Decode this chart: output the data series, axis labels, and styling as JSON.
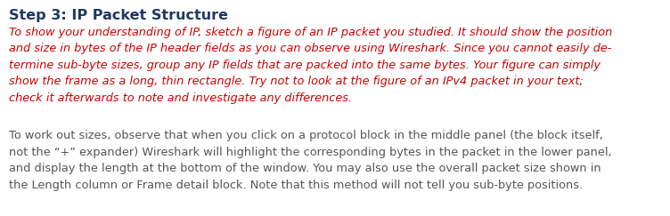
{
  "title": "Step 3: IP Packet Structure",
  "title_color": "#1f3864",
  "title_fontsize": 11.5,
  "red_lines": [
    "To show your understanding of IP, sketch a figure of an IP packet you studied. It should show the position",
    "and size in bytes of the IP header fields as you can observe using Wireshark. Since you cannot easily de-",
    "termine sub-byte sizes, group any IP fields that are packed into the same bytes. Your figure can simply",
    "show the frame as a long, thin rectangle. Try not to look at the figure of an IPv4 packet in your text;",
    "check it afterwards to note and investigate any differences."
  ],
  "red_color": "#cc0000",
  "red_fontsize": 9.3,
  "black_lines": [
    "To work out sizes, observe that when you click on a protocol block in the middle panel (the block itself,",
    "not the “+” expander) Wireshark will highlight the corresponding bytes in the packet in the lower panel,",
    "and display the length at the bottom of the window. You may also use the overall packet size shown in",
    "the Length column or Frame detail block. Note that this method will not tell you sub-byte positions."
  ],
  "black_color": "#555555",
  "black_fontsize": 9.3,
  "background_color": "#ffffff"
}
